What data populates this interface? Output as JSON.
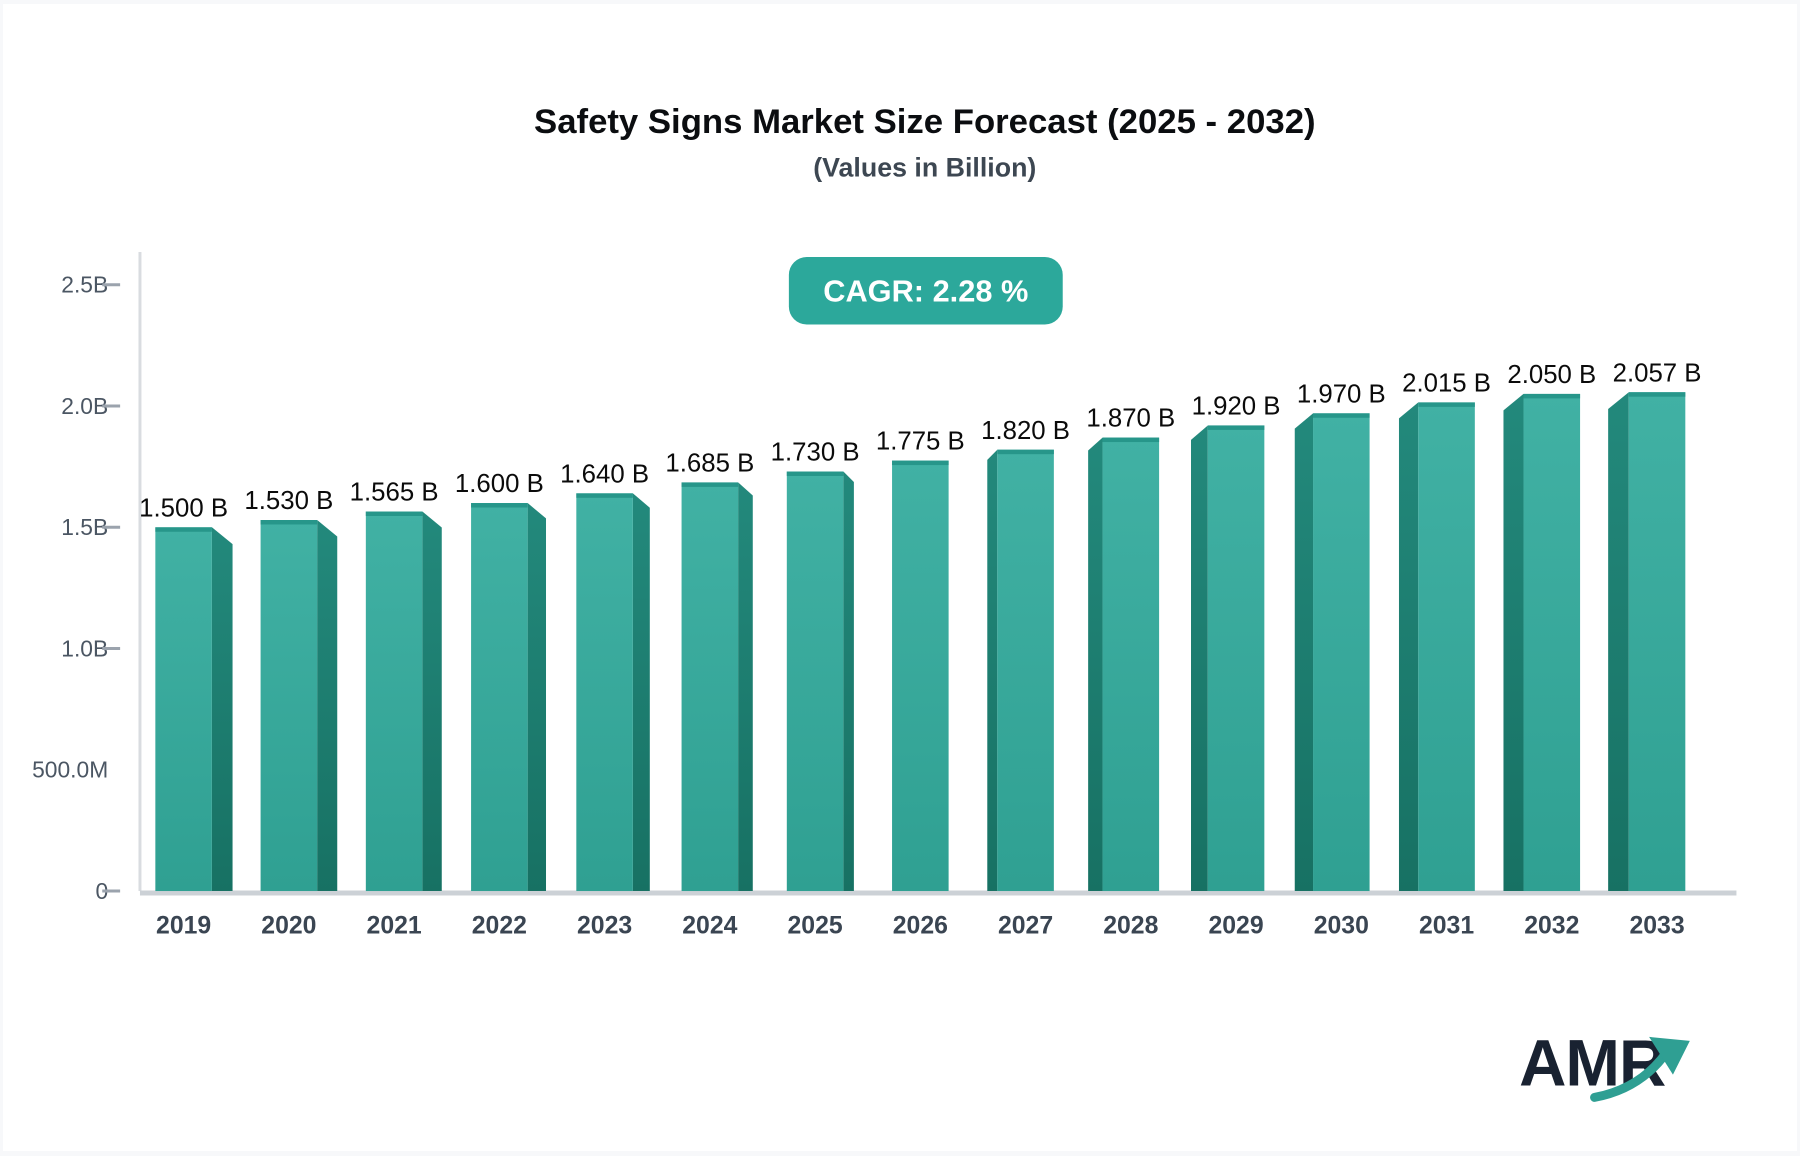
{
  "header": {
    "title": "Safety Signs Market Size Forecast (2025 - 2032)",
    "subtitle": "(Values in Billion)",
    "cagr_label": "CAGR: 2.28 %"
  },
  "footer": {
    "logo_text": "AMR"
  },
  "chart_data": {
    "type": "bar",
    "title": "Safety Signs Market Size Forecast (2025 - 2032)",
    "subtitle": "(Values in Billion)",
    "xlabel": "",
    "ylabel": "",
    "ylim": [
      0,
      2.5
    ],
    "grid": false,
    "legend": "none",
    "unit": "Billion USD",
    "categories": [
      "2019",
      "2020",
      "2021",
      "2022",
      "2023",
      "2024",
      "2025",
      "2026",
      "2027",
      "2028",
      "2029",
      "2030",
      "2031",
      "2032",
      "2033"
    ],
    "values": [
      1.5,
      1.53,
      1.565,
      1.6,
      1.64,
      1.685,
      1.73,
      1.775,
      1.82,
      1.87,
      1.92,
      1.97,
      2.015,
      2.05,
      2.057
    ],
    "value_labels": [
      "1.500 B",
      "1.530 B",
      "1.565 B",
      "1.600 B",
      "1.640 B",
      "1.685 B",
      "1.730 B",
      "1.775 B",
      "1.820 B",
      "1.870 B",
      "1.920 B",
      "1.970 B",
      "2.015 B",
      "2.050 B",
      "2.057 B"
    ],
    "yticks": [
      {
        "label": "2.5B",
        "value": 2.5,
        "dash": true
      },
      {
        "label": "2.0B",
        "value": 2.0,
        "dash": true
      },
      {
        "label": "1.5B",
        "value": 1.5,
        "dash": true
      },
      {
        "label": "1.0B",
        "value": 1.0,
        "dash": true
      },
      {
        "label": "500.0M",
        "value": 0.5,
        "dash": false
      },
      {
        "label": "0",
        "value": 0.0,
        "dash": true
      }
    ]
  },
  "colors": {
    "bar_front_top": "#41b1a4",
    "bar_front_bottom": "#2fa092",
    "bar_side_top": "#23897c",
    "bar_side_bottom": "#177163",
    "bar_top_cap": "#27968a",
    "badge_bg": "#2ca89b",
    "badge_text": "#ffffff",
    "title_text": "#0b0d10",
    "subtitle_text": "#3d4752",
    "axis_label": "#4b5663",
    "x_label": "#3a4552",
    "value_label": "#0b0b0b",
    "axis_line": "#d9dce0",
    "baseline": "#ccd1d6",
    "tick_dash": "#9ba3ad",
    "logo_text": "#192231",
    "logo_arrow": "#2f9f93"
  }
}
